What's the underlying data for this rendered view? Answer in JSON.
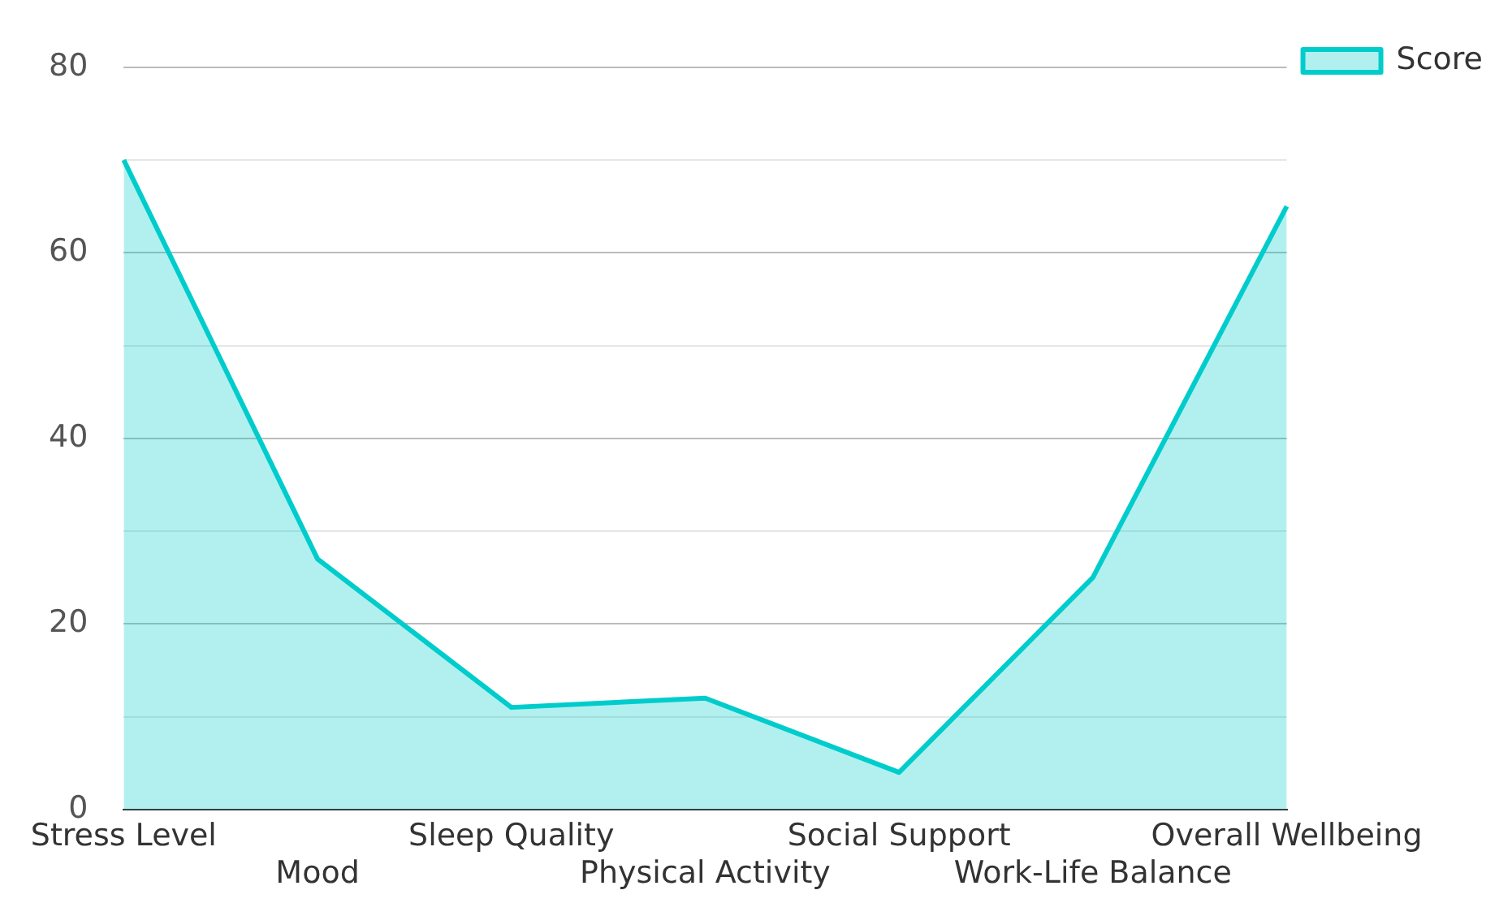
{
  "chart_data": {
    "type": "area",
    "categories": [
      "Stress Level",
      "Mood",
      "Sleep Quality",
      "Physical Activity",
      "Social Support",
      "Work-Life Balance",
      "Overall Wellbeing"
    ],
    "series": [
      {
        "name": "Score",
        "color": "#00cccc",
        "values": [
          70,
          27,
          11,
          12,
          4,
          25,
          65
        ]
      }
    ],
    "ylim": [
      0,
      80
    ],
    "yticks": [
      0,
      {
        "value": 10,
        "label": null
      },
      20,
      {
        "value": 30,
        "label": null
      },
      40,
      {
        "value": 50,
        "label": null
      },
      60,
      {
        "value": 70,
        "label": null
      },
      80
    ],
    "grid": "y",
    "legend": "top right",
    "marker": "none",
    "line_style": "solid"
  }
}
